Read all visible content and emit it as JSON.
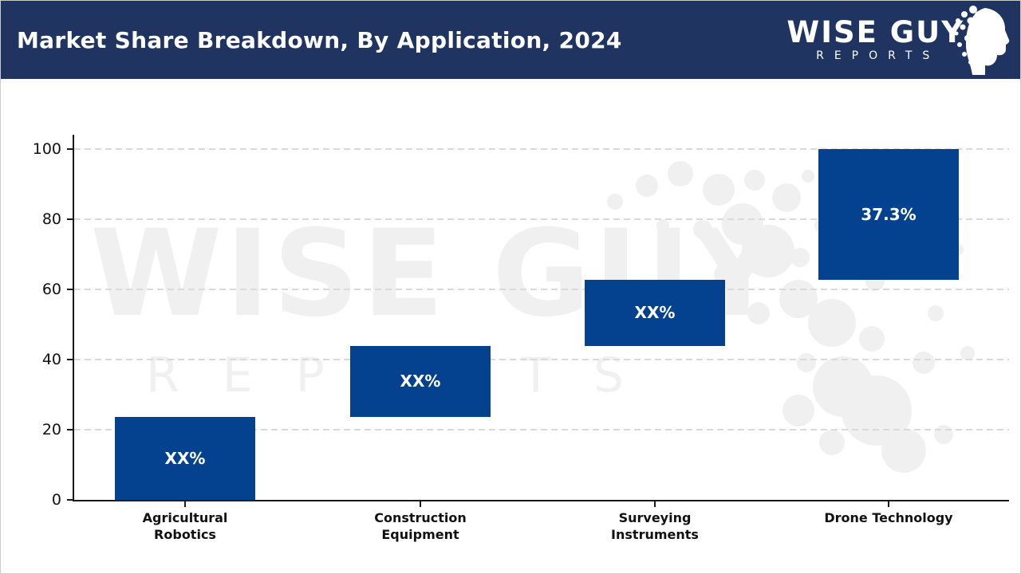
{
  "header": {
    "title": "Market Share Breakdown, By Application, 2024",
    "bg_color": "#1f3461",
    "logo": {
      "wordmark": "WISE GUY",
      "sub": "REPORTS"
    }
  },
  "watermark": {
    "wordmark": "WISE GUY",
    "sub": "REPORTS",
    "color": "#f0f0f0"
  },
  "chart_data": {
    "type": "bar",
    "subtype": "waterfall",
    "title": "Market Share Breakdown, By Application, 2024",
    "xlabel": "",
    "ylabel": "",
    "ylim": [
      0,
      100
    ],
    "yticks": [
      0,
      20,
      40,
      60,
      80,
      100
    ],
    "grid": "dashed-horizontal",
    "legend": "none",
    "bar_color": "#04428f",
    "bar_label_color": "#ffffff",
    "categories": [
      "Agricultural Robotics",
      "Construction Equipment",
      "Surveying Instruments",
      "Drone Technology"
    ],
    "segments": [
      {
        "category": "Agricultural Robotics",
        "category_lines": [
          "Agricultural",
          "Robotics"
        ],
        "start": 0,
        "end": 23.7,
        "label": "XX%"
      },
      {
        "category": "Construction Equipment",
        "category_lines": [
          "Construction",
          "Equipment"
        ],
        "start": 23.7,
        "end": 43.9,
        "label": "XX%"
      },
      {
        "category": "Surveying Instruments",
        "category_lines": [
          "Surveying",
          "Instruments"
        ],
        "start": 43.9,
        "end": 62.7,
        "label": "XX%"
      },
      {
        "category": "Drone Technology",
        "category_lines": [
          "Drone Technology"
        ],
        "start": 62.7,
        "end": 100,
        "label": "37.3%"
      }
    ]
  }
}
